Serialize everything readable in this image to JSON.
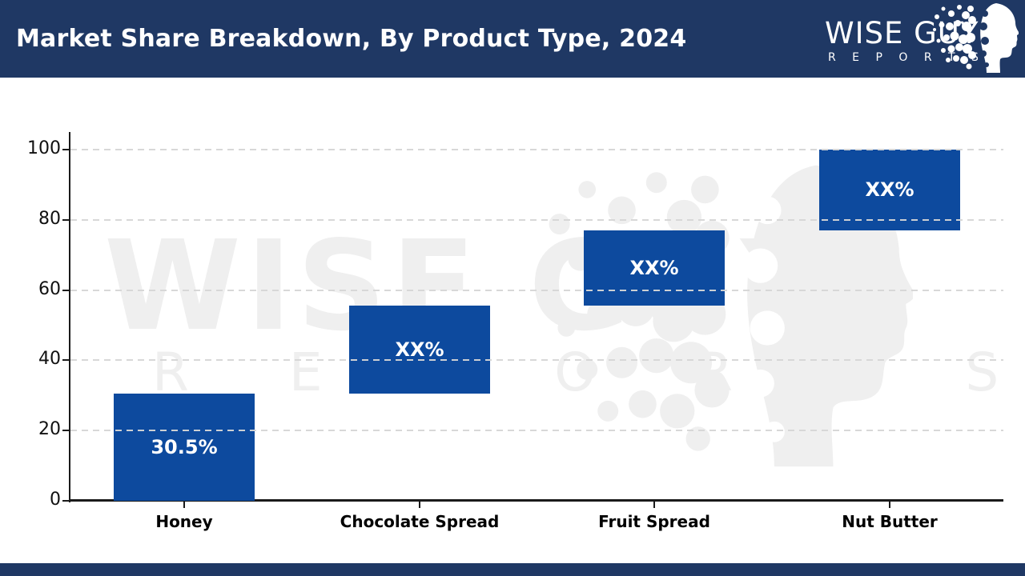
{
  "header": {
    "title": "Market Share Breakdown, By Product Type, 2024",
    "logo_line1": "WISE GUY",
    "logo_line2": "R E P O R T S"
  },
  "watermark": {
    "line1": "WISE GUY",
    "line2": "R E P O R T S"
  },
  "colors": {
    "header_bg": "#1F3864",
    "footer_bg": "#1F3864",
    "bar": "#0D4A9E",
    "grid": "#D6D6D6",
    "axis": "#1A1A1A",
    "watermark": "#EFEFEF",
    "bar_label": "#FFFFFF",
    "tick_label": "#111111"
  },
  "chart_data": {
    "type": "bar",
    "subtype": "waterfall",
    "title": "Market Share Breakdown, By Product Type, 2024",
    "categories": [
      "Honey",
      "Chocolate Spread",
      "Fruit Spread",
      "Nut Butter"
    ],
    "segments": [
      {
        "category": "Honey",
        "start": 0,
        "end": 30.5,
        "label": "30.5%"
      },
      {
        "category": "Chocolate Spread",
        "start": 30.5,
        "end": 55.5,
        "label": "XX%"
      },
      {
        "category": "Fruit Spread",
        "start": 55.5,
        "end": 77,
        "label": "XX%"
      },
      {
        "category": "Nut Butter",
        "start": 77,
        "end": 100,
        "label": "XX%"
      }
    ],
    "yticks": [
      0,
      20,
      40,
      60,
      80,
      100
    ],
    "ylim": [
      0,
      105
    ],
    "xlabel": "",
    "ylabel": "",
    "grid": "horizontal-dashed",
    "legend": "none",
    "unit": "%"
  }
}
